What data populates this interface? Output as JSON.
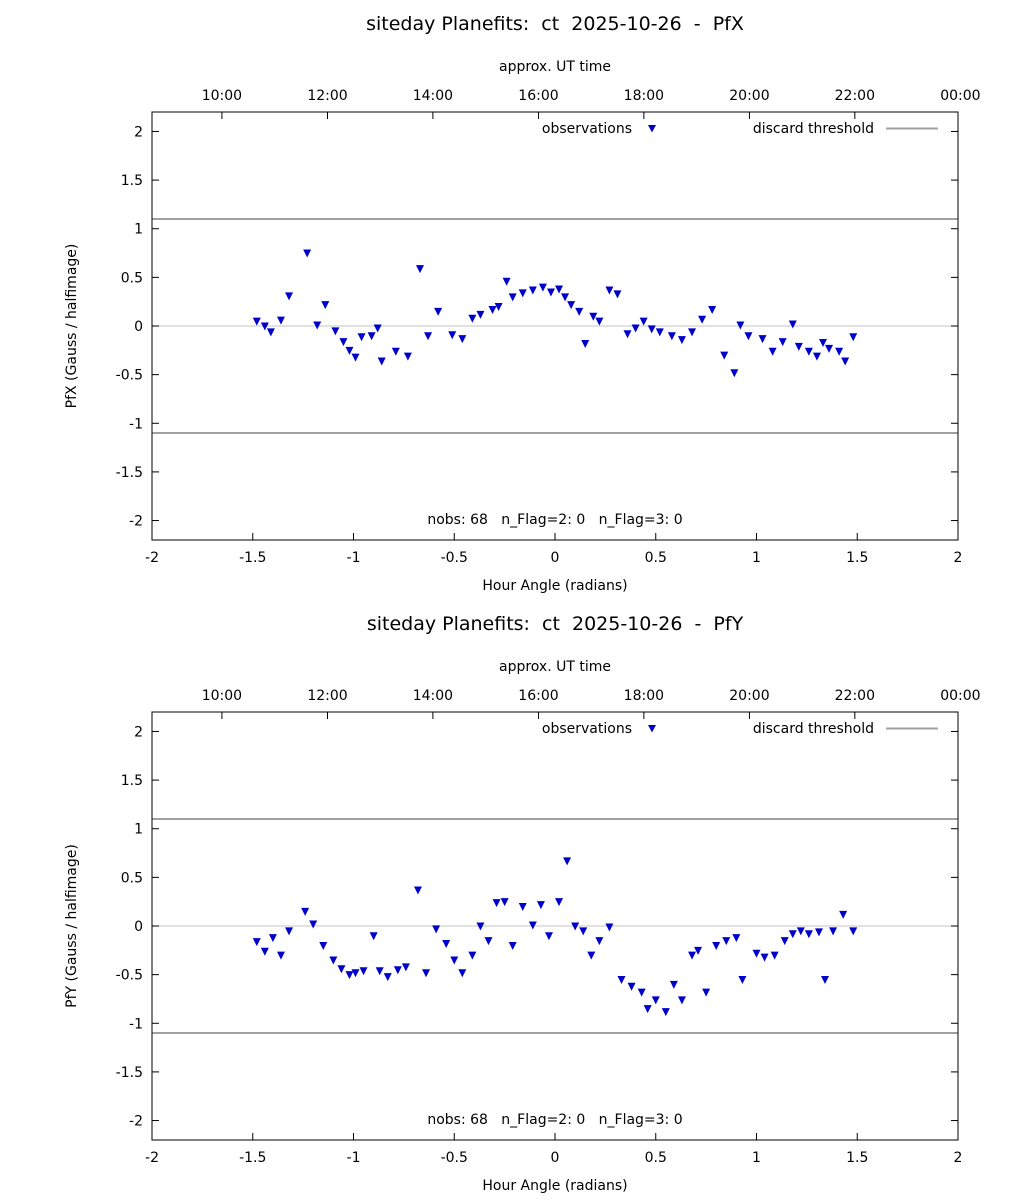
{
  "colors": {
    "point": "#0000cd",
    "threshold": "#a0a0a0",
    "zero_line": "#c6c6c6",
    "border": "#000000",
    "text": "#000000"
  },
  "chart_data": [
    {
      "id": "pfx",
      "type": "scatter",
      "title": "siteday Planefits:  ct  2025-10-26  -  PfX",
      "top_axis_label": "approx. UT time",
      "xlabel": "Hour Angle (radians)",
      "ylabel": "PfX (Gauss / halfimage)",
      "annotation": "nobs: 68   n_Flag=2: 0   n_Flag=3: 0",
      "legend": [
        {
          "label": "observations",
          "type": "point"
        },
        {
          "label": "discard threshold",
          "type": "line"
        }
      ],
      "xlim": [
        -2,
        2
      ],
      "ylim": [
        -2.2,
        2.2
      ],
      "thresholds": [
        1.1,
        -1.1
      ],
      "zero_line": 0,
      "xticks": [
        {
          "v": -2,
          "label": "-2"
        },
        {
          "v": -1.5,
          "label": "-1.5"
        },
        {
          "v": -1,
          "label": "-1"
        },
        {
          "v": -0.5,
          "label": "-0.5"
        },
        {
          "v": 0,
          "label": "0"
        },
        {
          "v": 0.5,
          "label": "0.5"
        },
        {
          "v": 1,
          "label": "1"
        },
        {
          "v": 1.5,
          "label": "1.5"
        },
        {
          "v": 2,
          "label": "2"
        }
      ],
      "yticks": [
        {
          "v": -2,
          "label": "-2"
        },
        {
          "v": -1.5,
          "label": "-1.5"
        },
        {
          "v": -1,
          "label": "-1"
        },
        {
          "v": -0.5,
          "label": "-0.5"
        },
        {
          "v": 0,
          "label": "0"
        },
        {
          "v": 0.5,
          "label": "0.5"
        },
        {
          "v": 1,
          "label": "1"
        },
        {
          "v": 1.5,
          "label": "1.5"
        },
        {
          "v": 2,
          "label": "2"
        }
      ],
      "top_ticks": [
        {
          "v": -1.653,
          "label": "10:00"
        },
        {
          "v": -1.129,
          "label": "12:00"
        },
        {
          "v": -0.606,
          "label": "14:00"
        },
        {
          "v": -0.082,
          "label": "16:00"
        },
        {
          "v": 0.441,
          "label": "18:00"
        },
        {
          "v": 0.965,
          "label": "20:00"
        },
        {
          "v": 1.488,
          "label": "22:00"
        },
        {
          "v": 2.012,
          "label": "00:00"
        }
      ],
      "points": [
        [
          -1.48,
          0.05
        ],
        [
          -1.44,
          0.0
        ],
        [
          -1.41,
          -0.06
        ],
        [
          -1.36,
          0.06
        ],
        [
          -1.32,
          0.31
        ],
        [
          -1.23,
          0.75
        ],
        [
          -1.18,
          0.01
        ],
        [
          -1.14,
          0.22
        ],
        [
          -1.09,
          -0.05
        ],
        [
          -1.05,
          -0.16
        ],
        [
          -1.02,
          -0.25
        ],
        [
          -0.99,
          -0.32
        ],
        [
          -0.96,
          -0.11
        ],
        [
          -0.91,
          -0.1
        ],
        [
          -0.88,
          -0.02
        ],
        [
          -0.86,
          -0.36
        ],
        [
          -0.79,
          -0.26
        ],
        [
          -0.73,
          -0.31
        ],
        [
          -0.67,
          0.59
        ],
        [
          -0.63,
          -0.1
        ],
        [
          -0.58,
          0.15
        ],
        [
          -0.51,
          -0.09
        ],
        [
          -0.46,
          -0.13
        ],
        [
          -0.41,
          0.08
        ],
        [
          -0.37,
          0.12
        ],
        [
          -0.31,
          0.17
        ],
        [
          -0.28,
          0.2
        ],
        [
          -0.24,
          0.46
        ],
        [
          -0.21,
          0.3
        ],
        [
          -0.16,
          0.34
        ],
        [
          -0.11,
          0.37
        ],
        [
          -0.06,
          0.4
        ],
        [
          -0.02,
          0.35
        ],
        [
          0.02,
          0.38
        ],
        [
          0.05,
          0.3
        ],
        [
          0.08,
          0.22
        ],
        [
          0.12,
          0.15
        ],
        [
          0.15,
          -0.18
        ],
        [
          0.19,
          0.1
        ],
        [
          0.22,
          0.05
        ],
        [
          0.27,
          0.37
        ],
        [
          0.31,
          0.33
        ],
        [
          0.36,
          -0.08
        ],
        [
          0.4,
          -0.02
        ],
        [
          0.44,
          0.05
        ],
        [
          0.48,
          -0.03
        ],
        [
          0.52,
          -0.06
        ],
        [
          0.58,
          -0.1
        ],
        [
          0.63,
          -0.14
        ],
        [
          0.68,
          -0.06
        ],
        [
          0.73,
          0.07
        ],
        [
          0.78,
          0.17
        ],
        [
          0.84,
          -0.3
        ],
        [
          0.89,
          -0.48
        ],
        [
          0.92,
          0.01
        ],
        [
          0.96,
          -0.1
        ],
        [
          1.03,
          -0.13
        ],
        [
          1.08,
          -0.26
        ],
        [
          1.13,
          -0.16
        ],
        [
          1.18,
          0.02
        ],
        [
          1.21,
          -0.21
        ],
        [
          1.26,
          -0.26
        ],
        [
          1.3,
          -0.31
        ],
        [
          1.33,
          -0.17
        ],
        [
          1.36,
          -0.23
        ],
        [
          1.41,
          -0.26
        ],
        [
          1.44,
          -0.36
        ],
        [
          1.48,
          -0.11
        ]
      ]
    },
    {
      "id": "pfy",
      "type": "scatter",
      "title": "siteday Planefits:  ct  2025-10-26  -  PfY",
      "top_axis_label": "approx. UT time",
      "xlabel": "Hour Angle (radians)",
      "ylabel": "PfY (Gauss / halfimage)",
      "annotation": "nobs: 68   n_Flag=2: 0   n_Flag=3: 0",
      "legend": [
        {
          "label": "observations",
          "type": "point"
        },
        {
          "label": "discard threshold",
          "type": "line"
        }
      ],
      "xlim": [
        -2,
        2
      ],
      "ylim": [
        -2.2,
        2.2
      ],
      "thresholds": [
        1.1,
        -1.1
      ],
      "zero_line": 0,
      "xticks": [
        {
          "v": -2,
          "label": "-2"
        },
        {
          "v": -1.5,
          "label": "-1.5"
        },
        {
          "v": -1,
          "label": "-1"
        },
        {
          "v": -0.5,
          "label": "-0.5"
        },
        {
          "v": 0,
          "label": "0"
        },
        {
          "v": 0.5,
          "label": "0.5"
        },
        {
          "v": 1,
          "label": "1"
        },
        {
          "v": 1.5,
          "label": "1.5"
        },
        {
          "v": 2,
          "label": "2"
        }
      ],
      "yticks": [
        {
          "v": -2,
          "label": "-2"
        },
        {
          "v": -1.5,
          "label": "-1.5"
        },
        {
          "v": -1,
          "label": "-1"
        },
        {
          "v": -0.5,
          "label": "-0.5"
        },
        {
          "v": 0,
          "label": "0"
        },
        {
          "v": 0.5,
          "label": "0.5"
        },
        {
          "v": 1,
          "label": "1"
        },
        {
          "v": 1.5,
          "label": "1.5"
        },
        {
          "v": 2,
          "label": "2"
        }
      ],
      "top_ticks": [
        {
          "v": -1.653,
          "label": "10:00"
        },
        {
          "v": -1.129,
          "label": "12:00"
        },
        {
          "v": -0.606,
          "label": "14:00"
        },
        {
          "v": -0.082,
          "label": "16:00"
        },
        {
          "v": 0.441,
          "label": "18:00"
        },
        {
          "v": 0.965,
          "label": "20:00"
        },
        {
          "v": 1.488,
          "label": "22:00"
        },
        {
          "v": 2.012,
          "label": "00:00"
        }
      ],
      "points": [
        [
          -1.48,
          -0.16
        ],
        [
          -1.44,
          -0.26
        ],
        [
          -1.4,
          -0.12
        ],
        [
          -1.36,
          -0.3
        ],
        [
          -1.32,
          -0.05
        ],
        [
          -1.24,
          0.15
        ],
        [
          -1.2,
          0.02
        ],
        [
          -1.15,
          -0.2
        ],
        [
          -1.1,
          -0.35
        ],
        [
          -1.06,
          -0.44
        ],
        [
          -1.02,
          -0.5
        ],
        [
          -0.99,
          -0.48
        ],
        [
          -0.95,
          -0.46
        ],
        [
          -0.9,
          -0.1
        ],
        [
          -0.87,
          -0.46
        ],
        [
          -0.83,
          -0.52
        ],
        [
          -0.78,
          -0.45
        ],
        [
          -0.74,
          -0.42
        ],
        [
          -0.68,
          0.37
        ],
        [
          -0.64,
          -0.48
        ],
        [
          -0.59,
          -0.03
        ],
        [
          -0.54,
          -0.18
        ],
        [
          -0.5,
          -0.35
        ],
        [
          -0.46,
          -0.48
        ],
        [
          -0.41,
          -0.3
        ],
        [
          -0.37,
          0.0
        ],
        [
          -0.33,
          -0.15
        ],
        [
          -0.29,
          0.24
        ],
        [
          -0.25,
          0.25
        ],
        [
          -0.21,
          -0.2
        ],
        [
          -0.16,
          0.2
        ],
        [
          -0.11,
          0.01
        ],
        [
          -0.07,
          0.22
        ],
        [
          -0.03,
          -0.1
        ],
        [
          0.02,
          0.25
        ],
        [
          0.06,
          0.67
        ],
        [
          0.1,
          0.0
        ],
        [
          0.14,
          -0.05
        ],
        [
          0.18,
          -0.3
        ],
        [
          0.22,
          -0.15
        ],
        [
          0.27,
          -0.01
        ],
        [
          0.33,
          -0.55
        ],
        [
          0.38,
          -0.62
        ],
        [
          0.43,
          -0.68
        ],
        [
          0.46,
          -0.85
        ],
        [
          0.5,
          -0.76
        ],
        [
          0.55,
          -0.88
        ],
        [
          0.59,
          -0.6
        ],
        [
          0.63,
          -0.76
        ],
        [
          0.68,
          -0.3
        ],
        [
          0.71,
          -0.25
        ],
        [
          0.75,
          -0.68
        ],
        [
          0.8,
          -0.2
        ],
        [
          0.85,
          -0.15
        ],
        [
          0.9,
          -0.12
        ],
        [
          0.93,
          -0.55
        ],
        [
          1.0,
          -0.28
        ],
        [
          1.04,
          -0.32
        ],
        [
          1.09,
          -0.3
        ],
        [
          1.14,
          -0.15
        ],
        [
          1.18,
          -0.08
        ],
        [
          1.22,
          -0.05
        ],
        [
          1.26,
          -0.08
        ],
        [
          1.31,
          -0.06
        ],
        [
          1.34,
          -0.55
        ],
        [
          1.38,
          -0.05
        ],
        [
          1.43,
          0.12
        ],
        [
          1.48,
          -0.05
        ]
      ]
    }
  ]
}
